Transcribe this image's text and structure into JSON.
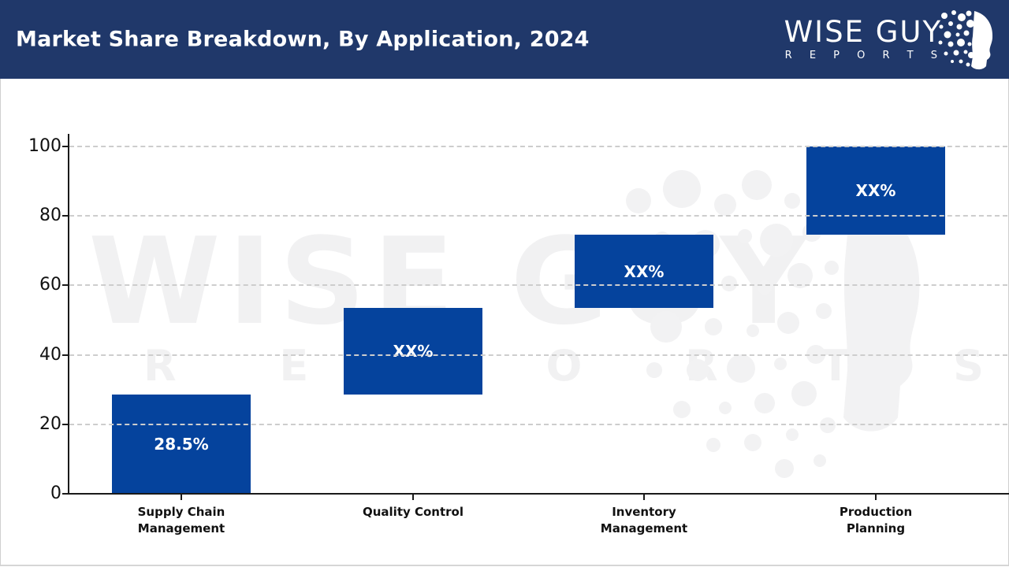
{
  "header": {
    "title": "Market Share Breakdown, By Application, 2024",
    "bg_color": "#20386a",
    "logo": {
      "name": "wise-guy-reports-logo",
      "line1": "WISE GUY",
      "line2": "R E P O R T S"
    }
  },
  "watermark": {
    "line1": "WISE GUY",
    "line2": "R E P O R T S"
  },
  "chart_data": {
    "type": "bar",
    "subtype": "waterfall",
    "title": "Market Share Breakdown, By Application, 2024",
    "categories": [
      "Supply Chain Management",
      "Quality Control",
      "Inventory Management",
      "Production Planning"
    ],
    "category_lines": [
      [
        "Supply Chain",
        "Management"
      ],
      [
        "Quality Control"
      ],
      [
        "Inventory",
        "Management"
      ],
      [
        "Production",
        "Planning"
      ]
    ],
    "segments": [
      {
        "category": "Supply Chain Management",
        "start": 0,
        "end": 28.5,
        "label": "28.5%"
      },
      {
        "category": "Quality Control",
        "start": 28.5,
        "end": 53.5,
        "label": "XX%"
      },
      {
        "category": "Inventory Management",
        "start": 53.5,
        "end": 74.5,
        "label": "XX%"
      },
      {
        "category": "Production Planning",
        "start": 74.5,
        "end": 100,
        "label": "XX%"
      }
    ],
    "xlabel": "",
    "ylabel": "",
    "ylim": [
      0,
      100
    ],
    "yticks": [
      0,
      20,
      40,
      60,
      80,
      100
    ],
    "grid": "horizontal-dashed-over-bars",
    "legend": null,
    "bar_color": "#05439d",
    "bar_label_color": "#ffffff",
    "axis_color": "#1a1a1a",
    "gridline_color": "#cdcdcd",
    "watermark_color": "#f1f1f2"
  }
}
